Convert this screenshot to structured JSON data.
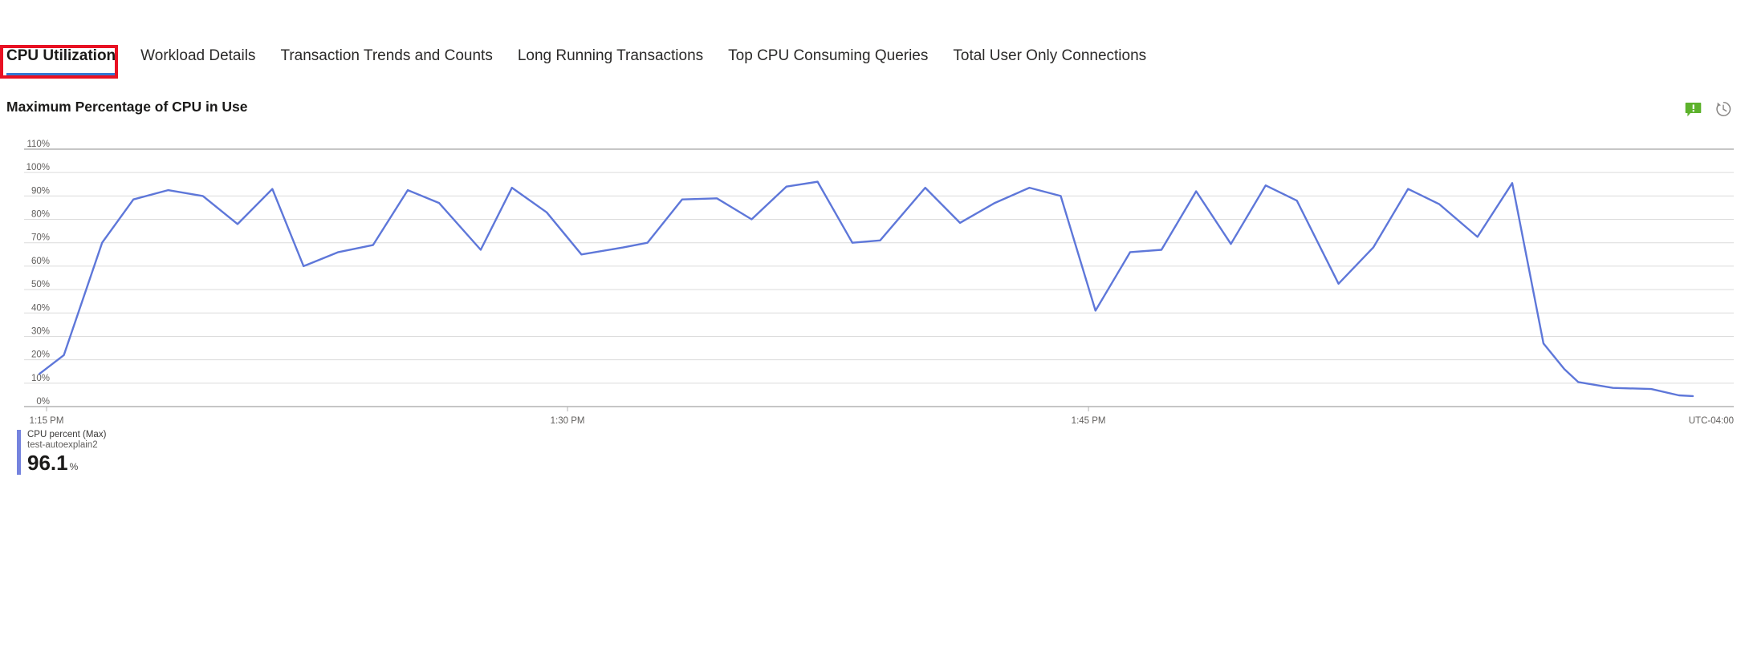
{
  "tabs": {
    "items": [
      {
        "label": "CPU Utilization",
        "selected": true,
        "annotated_with_red_box": true
      },
      {
        "label": "Workload Details",
        "selected": false
      },
      {
        "label": "Transaction Trends and Counts",
        "selected": false
      },
      {
        "label": "Long Running Transactions",
        "selected": false
      },
      {
        "label": "Top CPU Consuming Queries",
        "selected": false
      },
      {
        "label": "Total User Only Connections",
        "selected": false
      }
    ]
  },
  "section": {
    "title": "Maximum Percentage of CPU in Use"
  },
  "header_icons": [
    {
      "name": "feedback-icon",
      "glyph": "speech-bubble-exclamation",
      "color": "#5db22c"
    },
    {
      "name": "history-icon",
      "glyph": "clock-with-undo-arrow",
      "color": "#8a8886"
    }
  ],
  "legend": {
    "metric": "CPU percent (Max)",
    "resource": "test-autoexplain2",
    "value": "96.1",
    "unit": "%"
  },
  "colors": {
    "line": "#5e77d9",
    "legend_bar": "#7583de",
    "tab_underline": "#3278d4",
    "annotation_red": "#e81123",
    "feedback_green": "#5db22c",
    "grid": "#dcdcdc",
    "grid_strong": "#b3b3b3",
    "axis_text": "#605e5c"
  },
  "chart_data": {
    "type": "line",
    "title": "Maximum Percentage of CPU in Use",
    "xlabel": "",
    "ylabel": "CPU percent",
    "ylim": [
      0,
      110
    ],
    "grid": true,
    "legend_position": "bottom-left",
    "y_ticks": [
      0,
      10,
      20,
      30,
      40,
      50,
      60,
      70,
      80,
      90,
      100,
      110
    ],
    "y_tick_suffix": "%",
    "x_ticks": [
      {
        "label": "1:15 PM",
        "minute": 0
      },
      {
        "label": "1:30 PM",
        "minute": 15
      },
      {
        "label": "1:45 PM",
        "minute": 30
      }
    ],
    "timezone_label": "UTC-04:00",
    "x_unit": "minutes after 1:15 PM",
    "series": [
      {
        "name": "CPU percent (Max)",
        "resource": "test-autoexplain2",
        "max_value": 96.1,
        "unit": "%",
        "color": "#5e77d9",
        "points": [
          [
            -0.2,
            14
          ],
          [
            0.5,
            22
          ],
          [
            1.6,
            70
          ],
          [
            2.5,
            88.5
          ],
          [
            3.5,
            92.5
          ],
          [
            4.5,
            90
          ],
          [
            5.5,
            78
          ],
          [
            6.5,
            93
          ],
          [
            7.4,
            60
          ],
          [
            8.4,
            66
          ],
          [
            9.4,
            69
          ],
          [
            10.4,
            92.5
          ],
          [
            11.3,
            87
          ],
          [
            12.5,
            67
          ],
          [
            13.4,
            93.5
          ],
          [
            14.4,
            83
          ],
          [
            15.4,
            65
          ],
          [
            16.6,
            68
          ],
          [
            17.3,
            70
          ],
          [
            18.3,
            88.5
          ],
          [
            19.3,
            89
          ],
          [
            20.3,
            80
          ],
          [
            21.3,
            94
          ],
          [
            22.2,
            96.1
          ],
          [
            23.2,
            70
          ],
          [
            24.0,
            71
          ],
          [
            25.3,
            93.5
          ],
          [
            26.3,
            78.5
          ],
          [
            27.3,
            87
          ],
          [
            28.3,
            93.5
          ],
          [
            29.2,
            90
          ],
          [
            30.2,
            41
          ],
          [
            31.2,
            66
          ],
          [
            32.1,
            67
          ],
          [
            33.1,
            92
          ],
          [
            34.1,
            69.5
          ],
          [
            35.1,
            94.5
          ],
          [
            36.0,
            88
          ],
          [
            37.2,
            52.5
          ],
          [
            38.2,
            68
          ],
          [
            39.2,
            93
          ],
          [
            40.1,
            86.5
          ],
          [
            41.2,
            72.5
          ],
          [
            42.2,
            95.5
          ],
          [
            43.1,
            27
          ],
          [
            43.7,
            16
          ],
          [
            44.1,
            10.5
          ],
          [
            45.1,
            8
          ],
          [
            46.2,
            7.5
          ],
          [
            47.0,
            4.8
          ],
          [
            47.4,
            4.5
          ]
        ]
      }
    ]
  }
}
